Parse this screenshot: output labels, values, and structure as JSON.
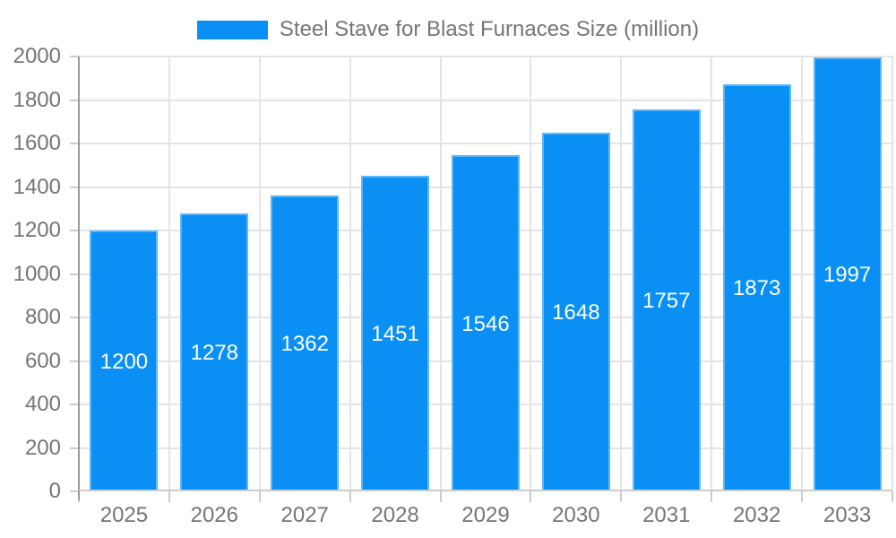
{
  "legend": {
    "label": "Steel Stave for Blast Furnaces Size (million)"
  },
  "chart_data": {
    "type": "bar",
    "title": "Steel Stave for Blast Furnaces Size (million)",
    "categories": [
      "2025",
      "2026",
      "2027",
      "2028",
      "2029",
      "2030",
      "2031",
      "2032",
      "2033"
    ],
    "values": [
      1200,
      1278,
      1362,
      1451,
      1546,
      1648,
      1757,
      1873,
      1997
    ],
    "xlabel": "",
    "ylabel": "",
    "ylim": [
      0,
      2000
    ],
    "ytick_step": 200,
    "grid": true,
    "legend_position": "top-center",
    "bar_color": "#0A90F5",
    "value_label_color": "#FFFFFF",
    "axis_text_color": "#757575",
    "gridline_color": "#E4E4E4",
    "tick_color": "#CCCCCC",
    "y_axis_line_color": "#9A9A9A",
    "x_axis_line_color": "#CCCCCC"
  }
}
